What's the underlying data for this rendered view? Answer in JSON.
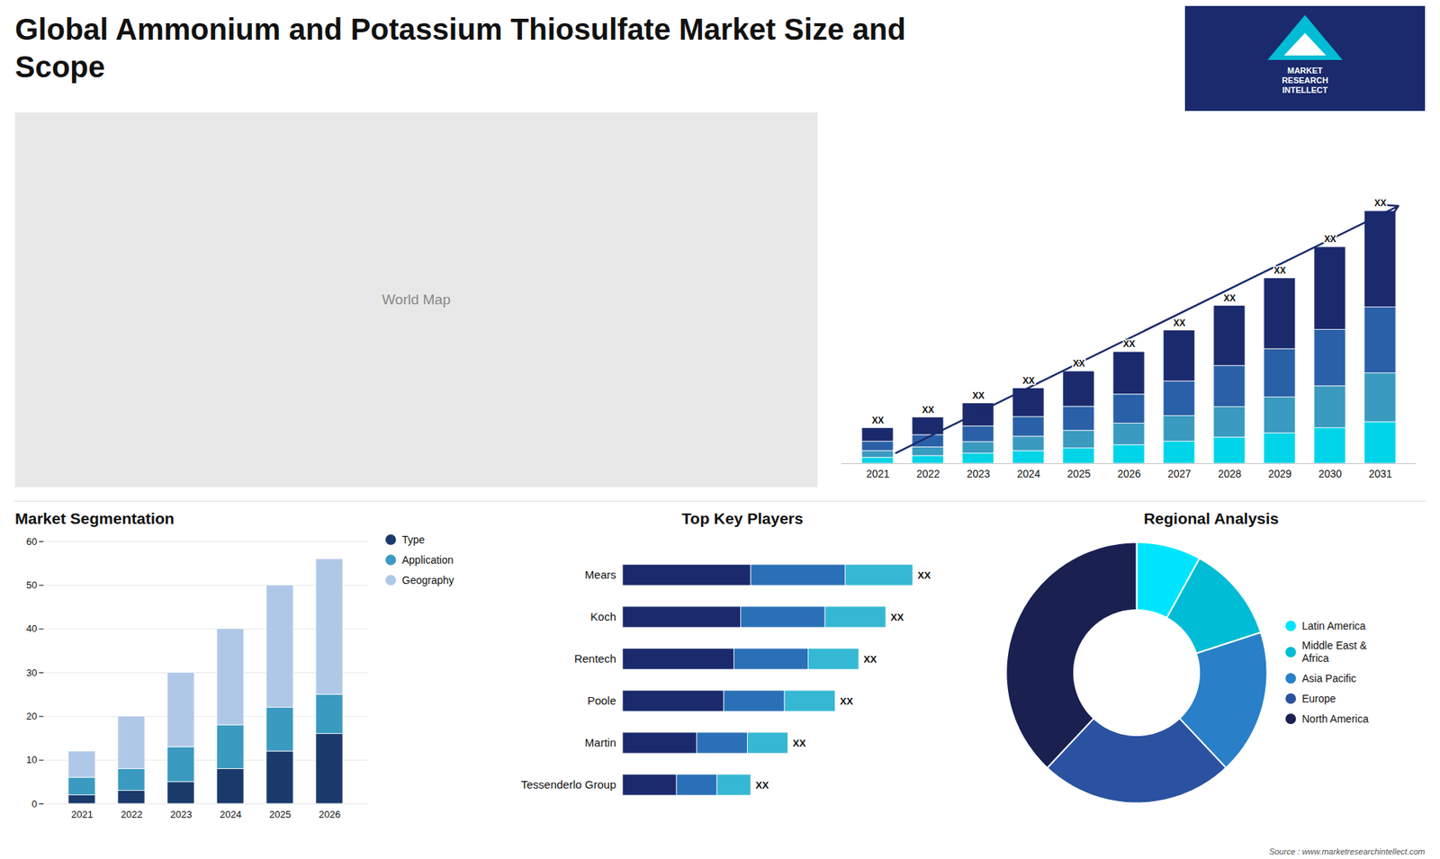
{
  "title": "Global Ammonium and Potassium Thiosulfate Market Size and\nScope",
  "annotations": [
    "World Map",
    "MARKET\nRESEARCH\nINTELLECT",
    "Source : www.marketresearchintellect.com"
  ],
  "chart_data": [
    {
      "type": "bar",
      "stacked": true,
      "categories": [
        "2021",
        "2022",
        "2023",
        "2024",
        "2025",
        "2026",
        "2027",
        "2028",
        "2029",
        "2030",
        "2031"
      ],
      "series": [
        {
          "color": "#00d4e8",
          "values": [
            0.35,
            0.45,
            0.6,
            0.75,
            0.9,
            1.1,
            1.3,
            1.55,
            1.8,
            2.1,
            2.45
          ]
        },
        {
          "color": "#3a9abf",
          "values": [
            0.4,
            0.52,
            0.68,
            0.85,
            1.05,
            1.27,
            1.52,
            1.8,
            2.12,
            2.48,
            2.9
          ]
        },
        {
          "color": "#2a60a8",
          "values": [
            0.55,
            0.72,
            0.93,
            1.16,
            1.42,
            1.72,
            2.05,
            2.43,
            2.86,
            3.34,
            3.9
          ]
        },
        {
          "color": "#1a2a6c",
          "values": [
            0.8,
            1.05,
            1.36,
            1.7,
            2.09,
            2.52,
            3.02,
            3.57,
            4.19,
            4.9,
            5.7
          ]
        }
      ],
      "ylim": [
        0,
        19.435
      ],
      "tick_labels": "x",
      "grid": false,
      "annotations": [
        {
          "type": "arrow",
          "color": "#1a2a6c"
        },
        {
          "category": "2021",
          "text": "XX"
        },
        {
          "category": "2022",
          "text": "XX"
        },
        {
          "category": "2023",
          "text": "XX"
        },
        {
          "category": "2024",
          "text": "XX"
        },
        {
          "category": "2025",
          "text": "XX"
        },
        {
          "category": "2026",
          "text": "XX"
        },
        {
          "category": "2027",
          "text": "XX"
        },
        {
          "category": "2028",
          "text": "XX"
        },
        {
          "category": "2029",
          "text": "XX"
        },
        {
          "category": "2030",
          "text": "XX"
        },
        {
          "category": "2031",
          "text": "XX"
        }
      ]
    },
    {
      "type": "bar",
      "stacked": true,
      "title": "Market Segmentation",
      "categories": [
        "2021",
        "2022",
        "2023",
        "2024",
        "2025",
        "2026"
      ],
      "series": [
        {
          "name": "Type",
          "color": "#1a3a6c",
          "values": [
            2,
            3,
            5,
            8,
            12,
            16
          ]
        },
        {
          "name": "Application",
          "color": "#3a9abf",
          "values": [
            4,
            5,
            8,
            10,
            10,
            9
          ]
        },
        {
          "name": "Geography",
          "color": "#b0c8e8",
          "values": [
            6,
            12,
            17,
            22,
            28,
            31
          ]
        }
      ],
      "ylim": [
        0,
        60
      ],
      "yticks": [
        0,
        10,
        20,
        30,
        40,
        50,
        60
      ],
      "grid": true,
      "legend": "right"
    },
    {
      "type": "bar",
      "stacked": true,
      "orientation": "horizontal",
      "title": "Top Key Players",
      "categories": [
        "Mears",
        "Koch",
        "Rentech",
        "Poole",
        "Martin",
        "Tessenderlo Group"
      ],
      "series": [
        {
          "color": "#1a2a6c",
          "values": [
            0.38,
            0.35,
            0.33,
            0.3,
            0.22,
            0.16
          ]
        },
        {
          "color": "#2a70b8",
          "values": [
            0.28,
            0.25,
            0.22,
            0.18,
            0.15,
            0.12
          ]
        },
        {
          "color": "#35b8d4",
          "values": [
            0.2,
            0.18,
            0.15,
            0.15,
            0.12,
            0.1
          ]
        }
      ],
      "xlim": [
        0,
        1.0
      ],
      "tick_labels": "y",
      "grid": false,
      "annotations": [
        {
          "category": "Mears",
          "text": "XX"
        },
        {
          "category": "Koch",
          "text": "XX"
        },
        {
          "category": "Rentech",
          "text": "XX"
        },
        {
          "category": "Poole",
          "text": "XX"
        },
        {
          "category": "Martin",
          "text": "XX"
        },
        {
          "category": "Tessenderlo Group",
          "text": "XX"
        }
      ]
    },
    {
      "type": "pie",
      "title": "Regional Analysis",
      "categories": [
        "Latin America",
        "Middle East &\nAfrica",
        "Asia Pacific",
        "Europe",
        "North America"
      ],
      "values": [
        8,
        12,
        18,
        24,
        38
      ],
      "colors": [
        "#00e5ff",
        "#00bcd4",
        "#2a80c8",
        "#2a52a0",
        "#1a2050"
      ],
      "legend": "right"
    }
  ]
}
